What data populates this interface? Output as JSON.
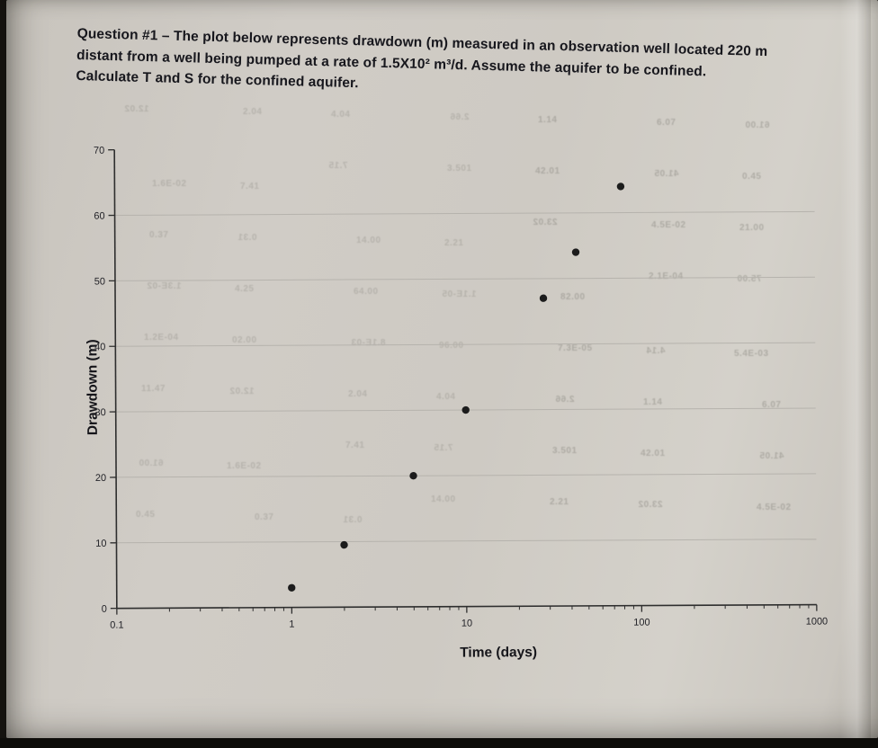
{
  "photo": {
    "background_color": "#15130f",
    "paper_color": "#cfccc5"
  },
  "question": {
    "line1": "Question #1 – The plot below represents drawdown (m) measured in an observation well located 220 m",
    "line2": "distant from a well being pumped at a rate of 1.5X10² m³/d. Assume the aquifer to be confined.",
    "line3": "Calculate T and S for the confined aquifer."
  },
  "chart_data": {
    "type": "scatter",
    "x_scale": "log",
    "xlabel": "Time (days)",
    "ylabel": "Drawdown (m)",
    "xlim": [
      0.1,
      1000
    ],
    "ylim": [
      0,
      70
    ],
    "x_ticks": [
      0.1,
      1,
      10,
      100,
      1000
    ],
    "x_tick_labels": [
      "0.1",
      "1",
      "10",
      "100",
      "1000"
    ],
    "y_ticks": [
      0,
      10,
      20,
      30,
      40,
      50,
      60,
      70
    ],
    "grid": "horizontal-major",
    "grid_color": "#b6b3ad",
    "axis_color": "#2e2e2e",
    "point_color": "#1c1c1c",
    "points": [
      {
        "t": 1,
        "s": 3
      },
      {
        "t": 2,
        "s": 9.5
      },
      {
        "t": 5,
        "s": 20
      },
      {
        "t": 10,
        "s": 30
      },
      {
        "t": 28,
        "s": 47
      },
      {
        "t": 43,
        "s": 54
      },
      {
        "t": 78,
        "s": 64
      }
    ]
  },
  "bleedthrough": {
    "fragments": [
      "12.02",
      "2.04",
      "4.04",
      "2.66",
      "1.14",
      "6.07",
      "61.00",
      "1.6E-02",
      "7.41",
      "7.15",
      "3.501",
      "42.01",
      "41.05",
      "0.45",
      "0.37",
      "0.31",
      "14.00",
      "2.21",
      "23.02",
      "4.5E-02",
      "21.00",
      "1.3E-02",
      "4.25",
      "64.00",
      "1.1E-05",
      "82.00",
      "2.1E-04",
      "75.00",
      "1.2E-04",
      "02.00",
      "8.1E-03",
      "96.00",
      "7.3E-05",
      "4.14",
      "5.4E-03",
      "11.47"
    ]
  }
}
